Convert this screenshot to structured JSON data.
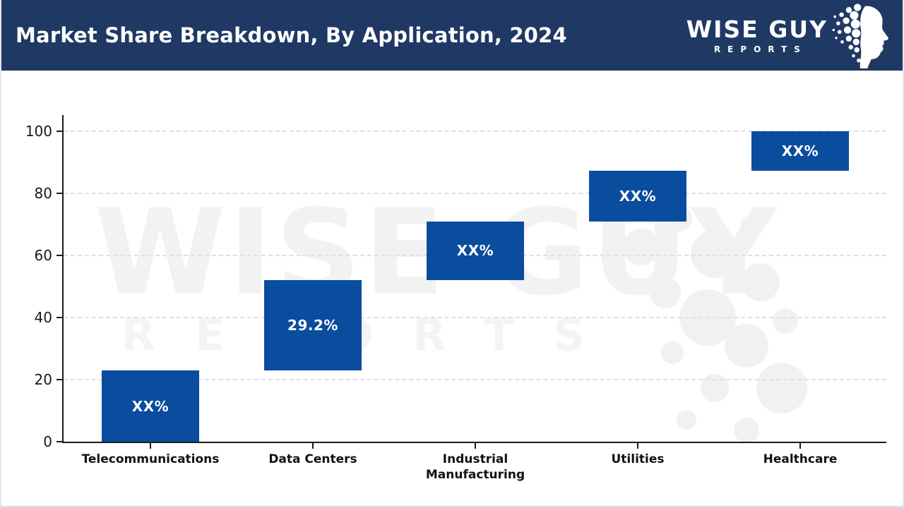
{
  "header": {
    "title": "Market Share Breakdown, By Application, 2024",
    "background_color": "#1f3864",
    "logo": {
      "line1": "WISE GUY",
      "line2": "REPORTS"
    }
  },
  "watermark": {
    "line1": "WISE GUY",
    "line2": "REPORTS"
  },
  "chart_data": {
    "type": "bar",
    "subtype": "waterfall",
    "title": "Market Share Breakdown, By Application, 2024",
    "categories": [
      "Telecommunications",
      "Data Centers",
      "Industrial Manufacturing",
      "Utilities",
      "Healthcare"
    ],
    "segments": [
      {
        "category": "Telecommunications",
        "start": 0,
        "end": 22.9,
        "value": 22.9,
        "label": "XX%"
      },
      {
        "category": "Data Centers",
        "start": 22.9,
        "end": 52.1,
        "value": 29.2,
        "label": "29.2%"
      },
      {
        "category": "Industrial Manufacturing",
        "start": 52.1,
        "end": 71.0,
        "value": 18.9,
        "label": "XX%"
      },
      {
        "category": "Utilities",
        "start": 71.0,
        "end": 87.3,
        "value": 16.3,
        "label": "XX%"
      },
      {
        "category": "Healthcare",
        "start": 87.3,
        "end": 100.0,
        "value": 12.7,
        "label": "XX%"
      }
    ],
    "yticks": [
      0,
      20,
      40,
      60,
      80,
      100
    ],
    "ylim": [
      0,
      100
    ],
    "xlabel": "",
    "ylabel": "",
    "bar_color": "#0a4c9e",
    "grid": "horizontal-dashed",
    "gridline_color": "#e0e0e0",
    "legend": false
  }
}
